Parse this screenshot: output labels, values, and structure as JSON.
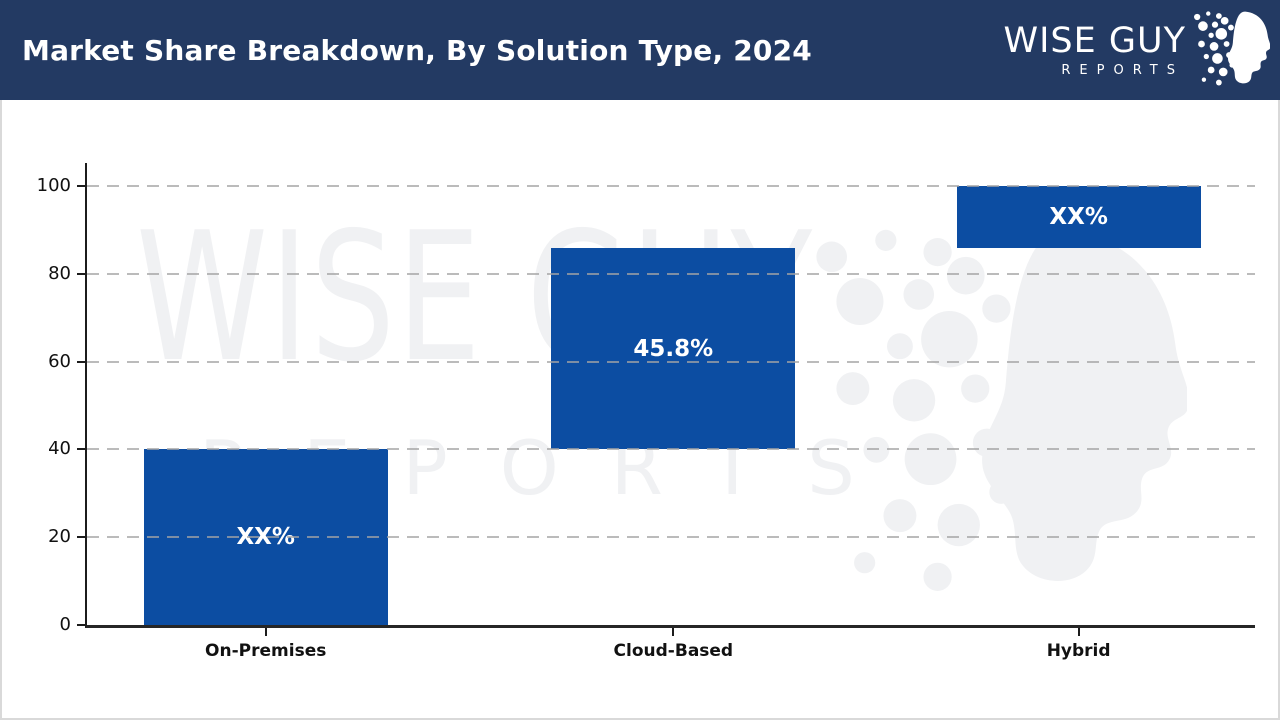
{
  "header": {
    "title": "Market Share Breakdown, By Solution Type, 2024",
    "bg_color": "#233A63",
    "logo": {
      "line1": "WISE GUY",
      "line2": "REPORTS"
    }
  },
  "watermark": {
    "line1": "WISE GUY",
    "line2": "REPORTS"
  },
  "chart_data": {
    "type": "bar",
    "subtype": "floating-stacked-columns",
    "title": "Market Share Breakdown, By Solution Type, 2024",
    "categories": [
      "On-Premises",
      "Cloud-Based",
      "Hybrid"
    ],
    "bars": [
      {
        "category": "On-Premises",
        "label": "XX%",
        "start": 0,
        "end": 40
      },
      {
        "category": "Cloud-Based",
        "label": "45.8%",
        "start": 40,
        "end": 85.8
      },
      {
        "category": "Hybrid",
        "label": "XX%",
        "start": 85.8,
        "end": 100
      }
    ],
    "xlabel": "",
    "ylabel": "",
    "ylim": [
      0,
      100
    ],
    "yticks": [
      0,
      20,
      40,
      60,
      80,
      100
    ],
    "grid": "horizontal dashed, drawn above bars",
    "legend": "none",
    "bar_color": "#0C4DA2",
    "bar_label_color": "#ffffff",
    "axis_color": "#1c1c1c"
  }
}
